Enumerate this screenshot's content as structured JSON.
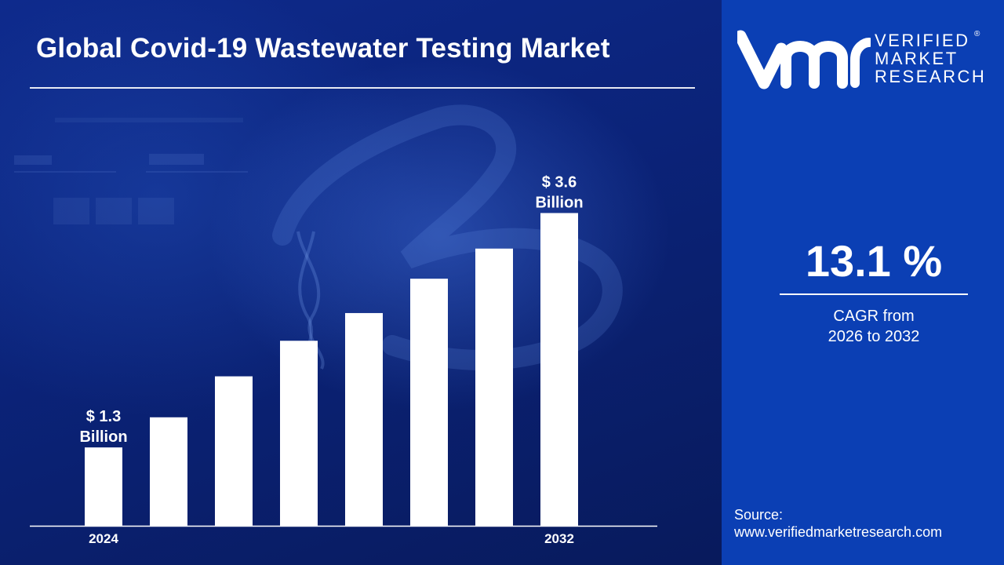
{
  "header": {
    "title": "Global Covid-19 Wastewater Testing Market"
  },
  "brand": {
    "line1": "VERIFIED",
    "line2": "MARKET",
    "line3": "RESEARCH",
    "reg": "®"
  },
  "cagr": {
    "value": "13.1 %",
    "label_line1": "CAGR from",
    "label_line2": "2026 to 2032"
  },
  "source": {
    "label": "Source:",
    "url": "www.verifiedmarketresearch.com"
  },
  "colors": {
    "bar": "#ffffff",
    "side_panel": "#0b3fb4",
    "background": "#0b2379"
  },
  "chart_data": {
    "type": "bar",
    "title": "Global Covid-19 Wastewater Testing Market",
    "categories": [
      "2024",
      "",
      "",
      "",
      "",
      "",
      "",
      "2032"
    ],
    "values": [
      1.3,
      1.8,
      2.48,
      3.07,
      3.53,
      4.1,
      4.6,
      5.19
    ],
    "value_units": "relative bar height (first and last bars labeled)",
    "ylim": [
      0,
      5.6
    ],
    "grid": false,
    "legend": "none",
    "annotations": [
      {
        "index": 0,
        "line1": "$ 1.3",
        "line2": "Billion"
      },
      {
        "index": 7,
        "line1": "$ 3.6",
        "line2": "Billion"
      }
    ]
  }
}
